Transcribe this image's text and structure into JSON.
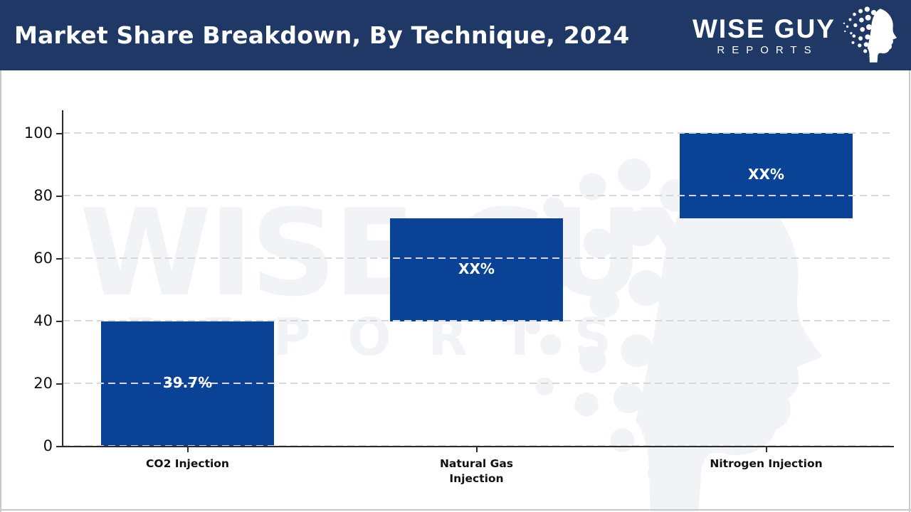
{
  "header": {
    "bg_color": "#1f3866",
    "title": "Market Share Breakdown, By Technique, 2024",
    "title_color": "#ffffff",
    "logo": {
      "name": "WISE GUY",
      "sub": "REPORTS"
    }
  },
  "watermark": {
    "name": "WISE GUY",
    "sub": "REPORTS"
  },
  "chart_data": {
    "type": "bar",
    "variant": "waterfall",
    "title": "Market Share Breakdown, By Technique, 2024",
    "categories": [
      {
        "lines": [
          "CO2 Injection"
        ]
      },
      {
        "lines": [
          "Natural Gas",
          "Injection"
        ]
      },
      {
        "lines": [
          "Nitrogen Injection"
        ]
      }
    ],
    "segments": [
      {
        "category": "CO2 Injection",
        "start": 0,
        "end": 39.7,
        "label": "39.7%"
      },
      {
        "category": "Natural Gas Injection",
        "start": 39.7,
        "end": 72.7,
        "label": "XX%"
      },
      {
        "category": "Nitrogen Injection",
        "start": 72.7,
        "end": 100,
        "label": "XX%"
      }
    ],
    "yticks": [
      0,
      20,
      40,
      60,
      80,
      100
    ],
    "ylim": [
      0,
      107
    ],
    "grid": "horizontal-dashed",
    "legend": "none",
    "bar_color": "#0a4296",
    "bar_label_color": "#ffffff",
    "gridline_color": "#d8d8d8",
    "axis_color": "#2b2b2b",
    "tick_label_color": "#111111"
  }
}
